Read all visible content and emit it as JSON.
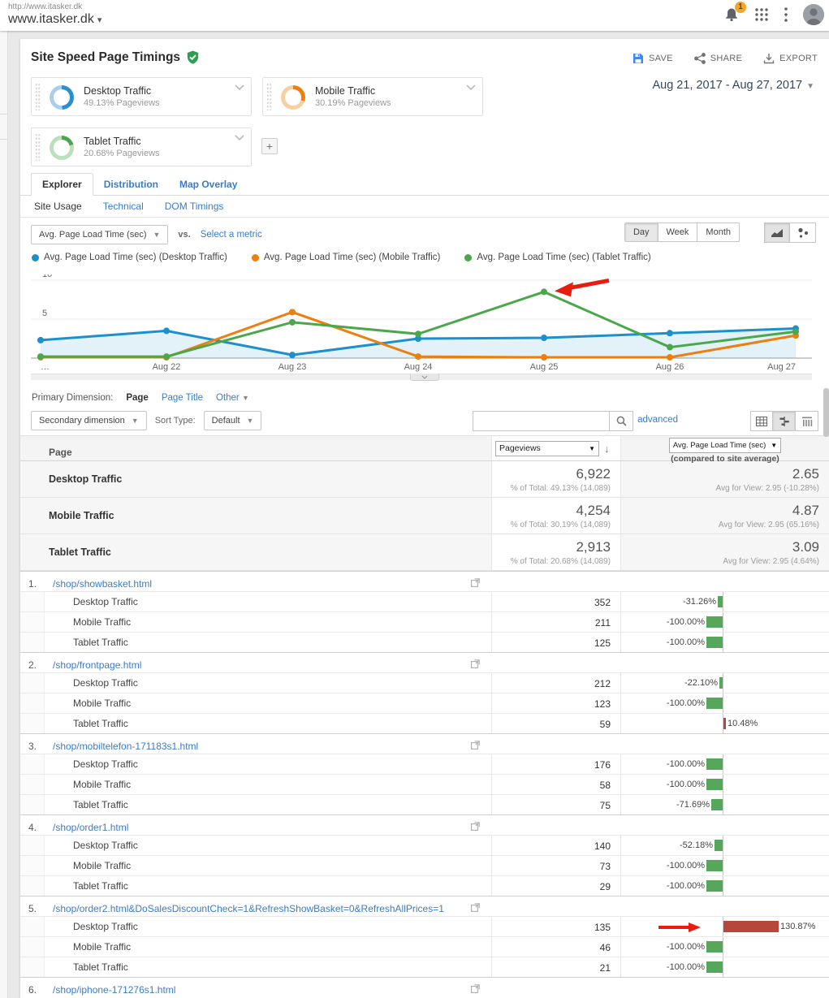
{
  "header": {
    "property_url": "http://www.itasker.dk",
    "account_name": "www.itasker.dk",
    "notification_count": "1"
  },
  "report": {
    "title": "Site Speed Page Timings",
    "save_label": "SAVE",
    "share_label": "SHARE",
    "export_label": "EXPORT",
    "date_range": "Aug 21, 2017 - Aug 27, 2017"
  },
  "segments": [
    {
      "name": "Desktop Traffic",
      "subtitle": "49.13% Pageviews",
      "percent": 49.13,
      "color": "#2a8fd0",
      "color_light": "#a9cfe9"
    },
    {
      "name": "Mobile Traffic",
      "subtitle": "30.19% Pageviews",
      "percent": 30.19,
      "color": "#ee7e0e",
      "color_light": "#f6cfa4"
    },
    {
      "name": "Tablet Traffic",
      "subtitle": "20.68% Pageviews",
      "percent": 20.68,
      "color": "#4ca74c",
      "color_light": "#bedfbc"
    }
  ],
  "add_segment_label": "+",
  "tabs": {
    "explorer": "Explorer",
    "distribution": "Distribution",
    "map_overlay": "Map Overlay"
  },
  "subtabs": {
    "site_usage": "Site Usage",
    "technical": "Technical",
    "dom_timings": "DOM Timings"
  },
  "metric_bar": {
    "metric": "Avg. Page Load Time (sec)",
    "vs_label": "vs.",
    "select_metric": "Select a metric",
    "granularity": [
      "Day",
      "Week",
      "Month"
    ],
    "granularity_selected": "Day"
  },
  "chart_data": {
    "type": "line",
    "x": [
      "…",
      "Aug 22",
      "Aug 23",
      "Aug 24",
      "Aug 25",
      "Aug 26",
      "Aug 27"
    ],
    "series": [
      {
        "name": "Avg. Page Load Time (sec) (Desktop Traffic)",
        "color": "#1c8fce",
        "area": true,
        "values": [
          2.3,
          3.5,
          0.4,
          2.5,
          2.6,
          3.2,
          3.8
        ]
      },
      {
        "name": "Avg. Page Load Time (sec) (Mobile Traffic)",
        "color": "#ee7e0e",
        "area": false,
        "values": [
          0.1,
          0.1,
          5.9,
          0.2,
          0.1,
          0.1,
          2.9
        ]
      },
      {
        "name": "Avg. Page Load Time (sec) (Tablet Traffic)",
        "color": "#4ca74c",
        "area": false,
        "values": [
          0.2,
          0.2,
          4.6,
          3.1,
          8.5,
          1.4,
          3.4
        ]
      }
    ],
    "ylim": [
      0,
      10
    ],
    "yticks": [
      5,
      10
    ],
    "grid": true,
    "legend_position": "top",
    "annotation": {
      "type": "red-arrow",
      "series": 2,
      "point": 4,
      "note": "points at Tablet Traffic peak on Aug 25"
    }
  },
  "dimension_bar": {
    "label": "Primary Dimension:",
    "selected": "Page",
    "options": [
      "Page Title",
      "Other"
    ]
  },
  "toolbar": {
    "secondary_dimension": "Secondary dimension",
    "sort_type_label": "Sort Type:",
    "sort_type_value": "Default",
    "search_placeholder": "",
    "advanced_label": "advanced"
  },
  "table": {
    "columns": {
      "page": "Page",
      "pageviews": "Pageviews",
      "metric": "Avg. Page Load Time (sec)",
      "metric_note": "(compared to site average)"
    },
    "bar_colors": {
      "good": "#57a65b",
      "bad": "#b5473c"
    },
    "totals": [
      {
        "label": "Desktop Traffic",
        "pageviews": "6,922",
        "pv_note": "% of Total: 49.13% (14,089)",
        "metric": "2.65",
        "metric_note": "Avg for View: 2.95 (-10.28%)"
      },
      {
        "label": "Mobile Traffic",
        "pageviews": "4,254",
        "pv_note": "% of Total: 30.19% (14,089)",
        "metric": "4.87",
        "metric_note": "Avg for View: 2.95 (65.16%)"
      },
      {
        "label": "Tablet Traffic",
        "pageviews": "2,913",
        "pv_note": "% of Total: 20.68% (14,089)",
        "metric": "3.09",
        "metric_note": "Avg for View: 2.95 (4.64%)"
      }
    ],
    "groups": [
      {
        "index": "1.",
        "url": "/shop/showbasket.html",
        "rows": [
          {
            "label": "Desktop Traffic",
            "pageviews": "352",
            "pct": "-31.26%",
            "value": -31.26
          },
          {
            "label": "Mobile Traffic",
            "pageviews": "211",
            "pct": "-100.00%",
            "value": -100
          },
          {
            "label": "Tablet Traffic",
            "pageviews": "125",
            "pct": "-100.00%",
            "value": -100
          }
        ]
      },
      {
        "index": "2.",
        "url": "/shop/frontpage.html",
        "rows": [
          {
            "label": "Desktop Traffic",
            "pageviews": "212",
            "pct": "-22.10%",
            "value": -22.1
          },
          {
            "label": "Mobile Traffic",
            "pageviews": "123",
            "pct": "-100.00%",
            "value": -100
          },
          {
            "label": "Tablet Traffic",
            "pageviews": "59",
            "pct": "10.48%",
            "value": 10.48
          }
        ]
      },
      {
        "index": "3.",
        "url": "/shop/mobiltelefon-171183s1.html",
        "rows": [
          {
            "label": "Desktop Traffic",
            "pageviews": "176",
            "pct": "-100.00%",
            "value": -100
          },
          {
            "label": "Mobile Traffic",
            "pageviews": "58",
            "pct": "-100.00%",
            "value": -100
          },
          {
            "label": "Tablet Traffic",
            "pageviews": "75",
            "pct": "-71.69%",
            "value": -71.69
          }
        ]
      },
      {
        "index": "4.",
        "url": "/shop/order1.html",
        "rows": [
          {
            "label": "Desktop Traffic",
            "pageviews": "140",
            "pct": "-52.18%",
            "value": -52.18
          },
          {
            "label": "Mobile Traffic",
            "pageviews": "73",
            "pct": "-100.00%",
            "value": -100
          },
          {
            "label": "Tablet Traffic",
            "pageviews": "29",
            "pct": "-100.00%",
            "value": -100
          }
        ]
      },
      {
        "index": "5.",
        "url": "/shop/order2.html&DoSalesDiscountCheck=1&RefreshShowBasket=0&RefreshAllPrices=1",
        "rows": [
          {
            "label": "Desktop Traffic",
            "pageviews": "135",
            "pct": "130.87%",
            "value": 130.87,
            "arrow": true
          },
          {
            "label": "Mobile Traffic",
            "pageviews": "46",
            "pct": "-100.00%",
            "value": -100
          },
          {
            "label": "Tablet Traffic",
            "pageviews": "21",
            "pct": "-100.00%",
            "value": -100
          }
        ]
      },
      {
        "index": "6.",
        "url": "/shop/iphone-171276s1.html",
        "rows": []
      }
    ]
  }
}
